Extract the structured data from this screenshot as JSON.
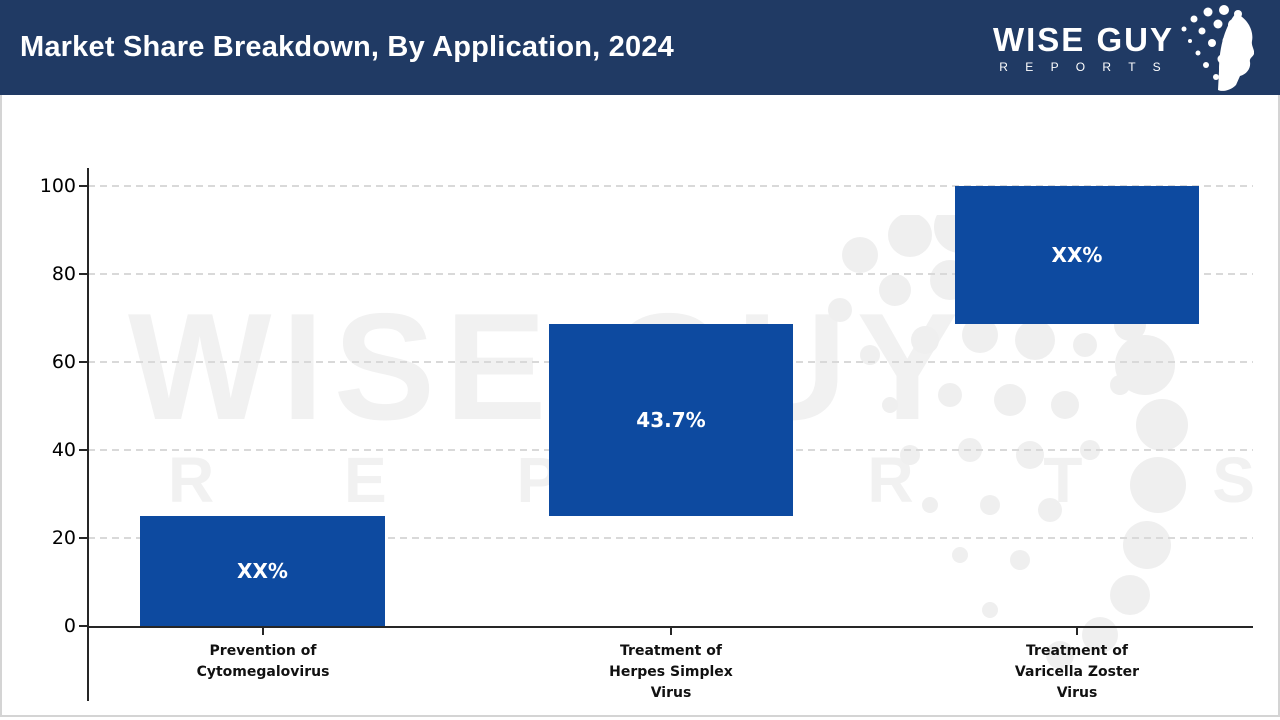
{
  "header": {
    "title": "Market Share Breakdown, By Application, 2024",
    "logo": {
      "line1": "WISE GUY",
      "line2": "R E P O R T S"
    }
  },
  "watermark": {
    "line1": "WISE GUY",
    "line2": "R E P O R T S"
  },
  "chart_data": {
    "type": "bar",
    "subtype": "waterfall",
    "title": "Market Share Breakdown, By Application, 2024",
    "categories": [
      "Prevention of\nCytomegalovirus",
      "Treatment of\nHerpes Simplex\nVirus",
      "Treatment of\nVaricella Zoster\nVirus"
    ],
    "bars": [
      {
        "category": "Prevention of Cytomegalovirus",
        "start": 0,
        "end": 25,
        "value": 25,
        "label": "XX%"
      },
      {
        "category": "Treatment of Herpes Simplex Virus",
        "start": 25,
        "end": 68.7,
        "value": 43.7,
        "label": "43.7%"
      },
      {
        "category": "Treatment of Varicella Zoster Virus",
        "start": 68.7,
        "end": 100,
        "value": 31.3,
        "label": "XX%"
      }
    ],
    "xlabel": "",
    "ylabel": "",
    "ylim": [
      0,
      100
    ],
    "yticks": [
      0,
      20,
      40,
      60,
      80,
      100
    ],
    "grid": "horizontal-dashed",
    "legend": "none",
    "bar_color": "#0D4AA0"
  },
  "colors": {
    "header_bg": "#203A64",
    "bar": "#0D4AA0",
    "gridline": "#D9D9D9",
    "axis": "#262626",
    "watermark": "#F1F1F1",
    "card_border": "#D4D4D4"
  }
}
